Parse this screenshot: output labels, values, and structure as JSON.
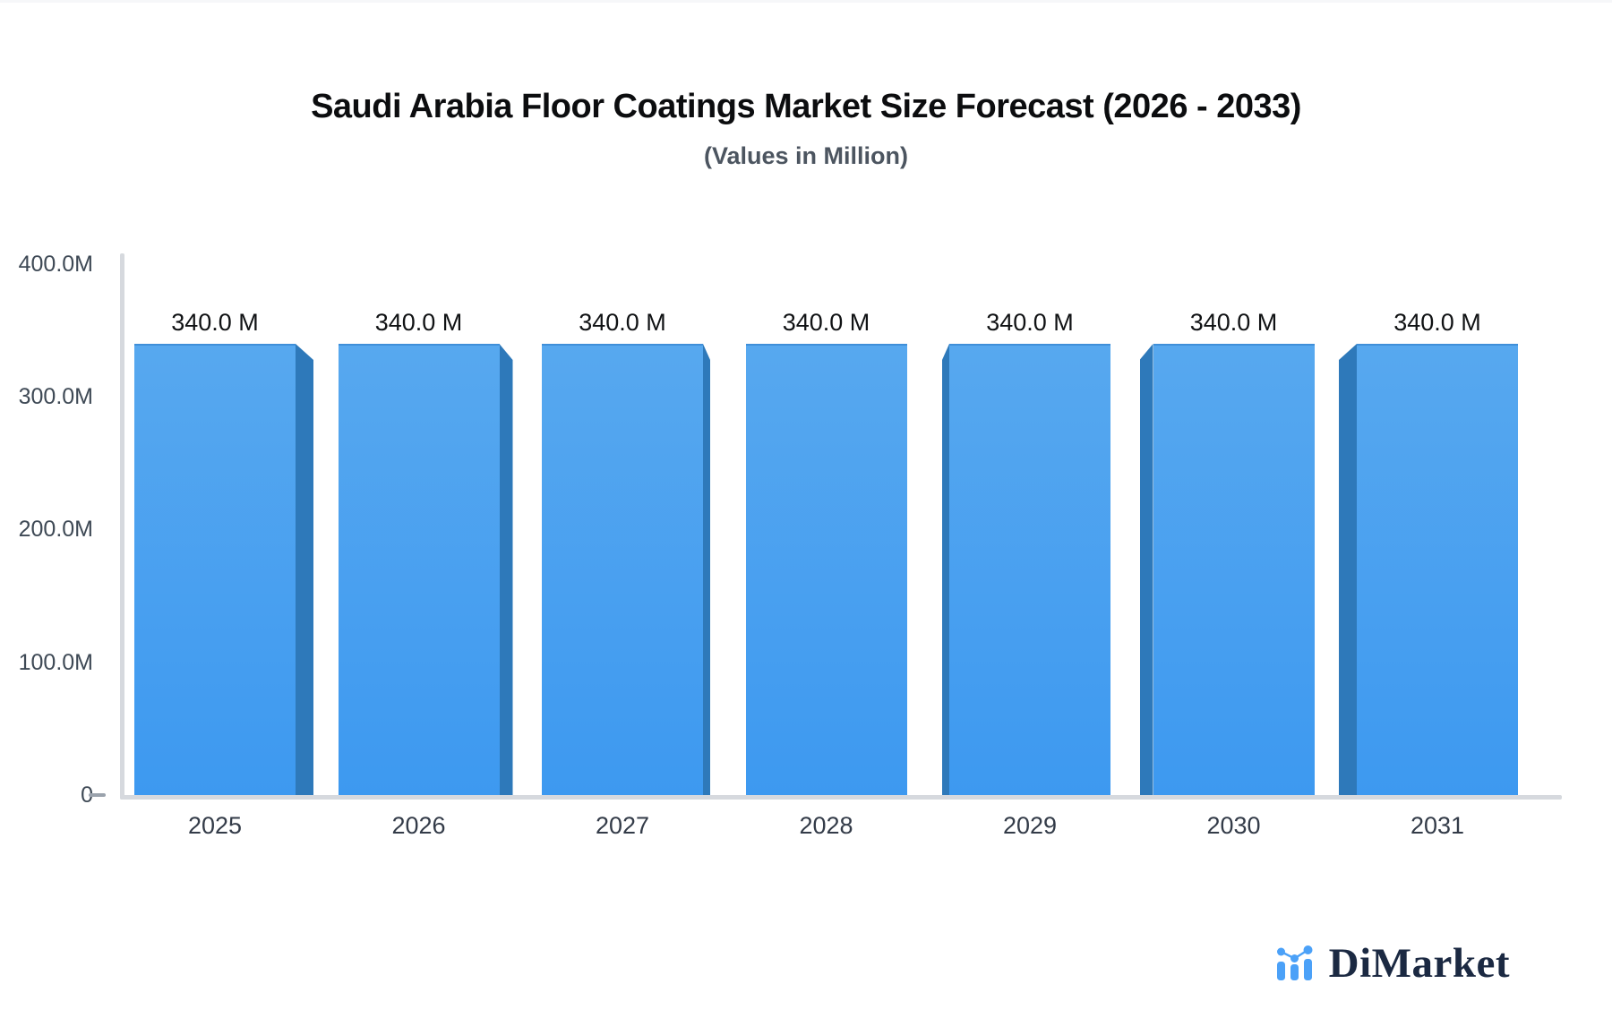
{
  "header": {
    "title": "Saudi Arabia Floor Coatings Market Size Forecast (2026 - 2033)",
    "subtitle": "(Values in Million)"
  },
  "chart_data": {
    "type": "bar",
    "title": "Saudi Arabia Floor Coatings Market Size Forecast (2026 - 2033)",
    "subtitle": "(Values in Million)",
    "unit": "Million",
    "categories": [
      "2025",
      "2026",
      "2027",
      "2028",
      "2029",
      "2030",
      "2031"
    ],
    "values": [
      340,
      340,
      340,
      340,
      340,
      340,
      340
    ],
    "value_labels": [
      "340.0 M",
      "340.0 M",
      "340.0 M",
      "340.0 M",
      "340.0 M",
      "340.0 M",
      "340.0 M"
    ],
    "y_ticks": [
      {
        "value": 0,
        "label": "0"
      },
      {
        "value": 100,
        "label": "100.0M"
      },
      {
        "value": 200,
        "label": "200.0M"
      },
      {
        "value": 300,
        "label": "300.0M"
      },
      {
        "value": 400,
        "label": "400.0M"
      }
    ],
    "ylim": [
      0,
      400
    ],
    "xlabel": "",
    "ylabel": "",
    "grid": false,
    "legend": null,
    "style_3d": true,
    "colors": {
      "bar_face_top": "#57a8ef",
      "bar_face_bottom": "#3d99f0",
      "bar_top_edge": "#3f8fd9",
      "bar_side": "#2e79ba",
      "axis": "#d6d9de",
      "zero_dash": "#9aa2ac",
      "title_text": "#0c0d0f",
      "subtitle_text": "#4c5560",
      "tick_text": "#3e4955",
      "year_text": "#333b48",
      "value_text": "#101214"
    }
  },
  "branding": {
    "logo_text": "DiMarket",
    "logo_icon": "bar-chart-with-trendline-icon",
    "logo_icon_color": "#4ba1f8",
    "logo_text_color": "#1b2942"
  }
}
